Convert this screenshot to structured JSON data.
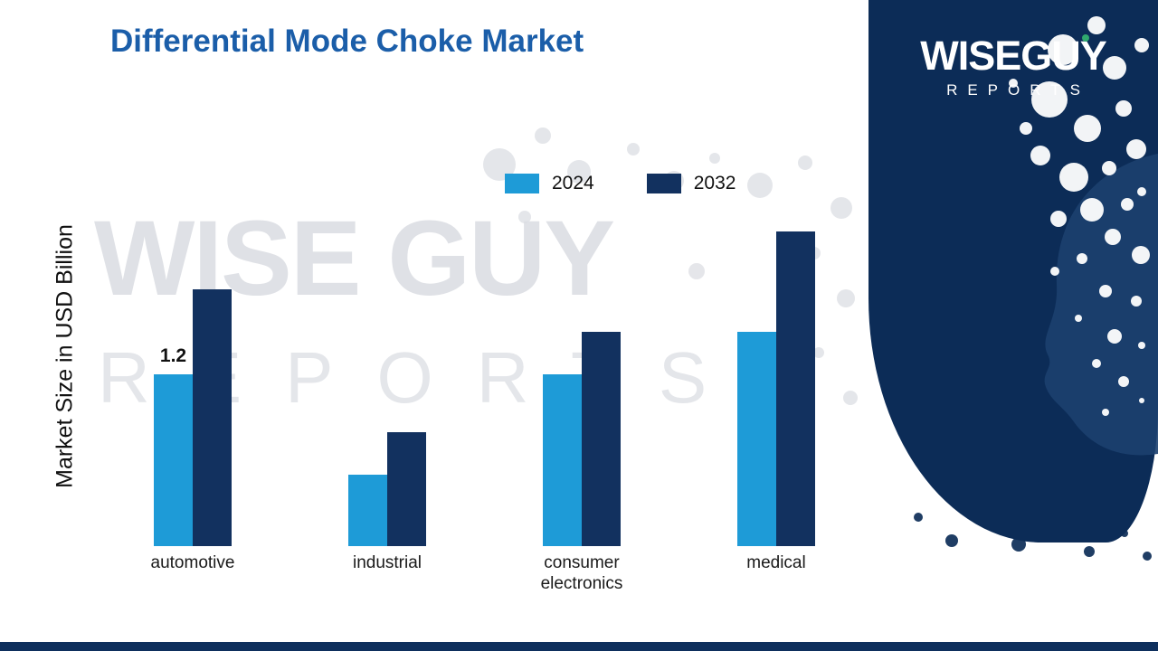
{
  "chart_data": {
    "type": "bar",
    "title": "Differential Mode Choke Market",
    "ylabel": "Market Size in USD Billion",
    "categories": [
      "automotive",
      "industrial",
      "consumer electronics",
      "medical"
    ],
    "series": [
      {
        "name": "2024",
        "color": "#1e9bd7",
        "values": [
          1.2,
          0.5,
          1.2,
          1.5
        ]
      },
      {
        "name": "2032",
        "color": "#12315f",
        "values": [
          1.8,
          0.8,
          1.5,
          2.2
        ]
      }
    ],
    "value_labels": [
      {
        "category": "automotive",
        "series": "2024",
        "text": "1.2"
      }
    ],
    "ylim": [
      0,
      2.4
    ],
    "grid": false,
    "legend_position": "top-center",
    "axis_lines": false
  },
  "watermark": {
    "line1": "WISE GUY",
    "line2": "REPORTS"
  },
  "branding": {
    "logo_name": "WISEGUY",
    "logo_reports": "REPORTS",
    "logo_bg": "#0c2c57",
    "accent_green": "#2fa96e"
  },
  "colors": {
    "title": "#1b5ea9",
    "background": "#ffffff",
    "bottom_bar": "#0e2f5d",
    "watermark_text": "#dfe1e6"
  }
}
